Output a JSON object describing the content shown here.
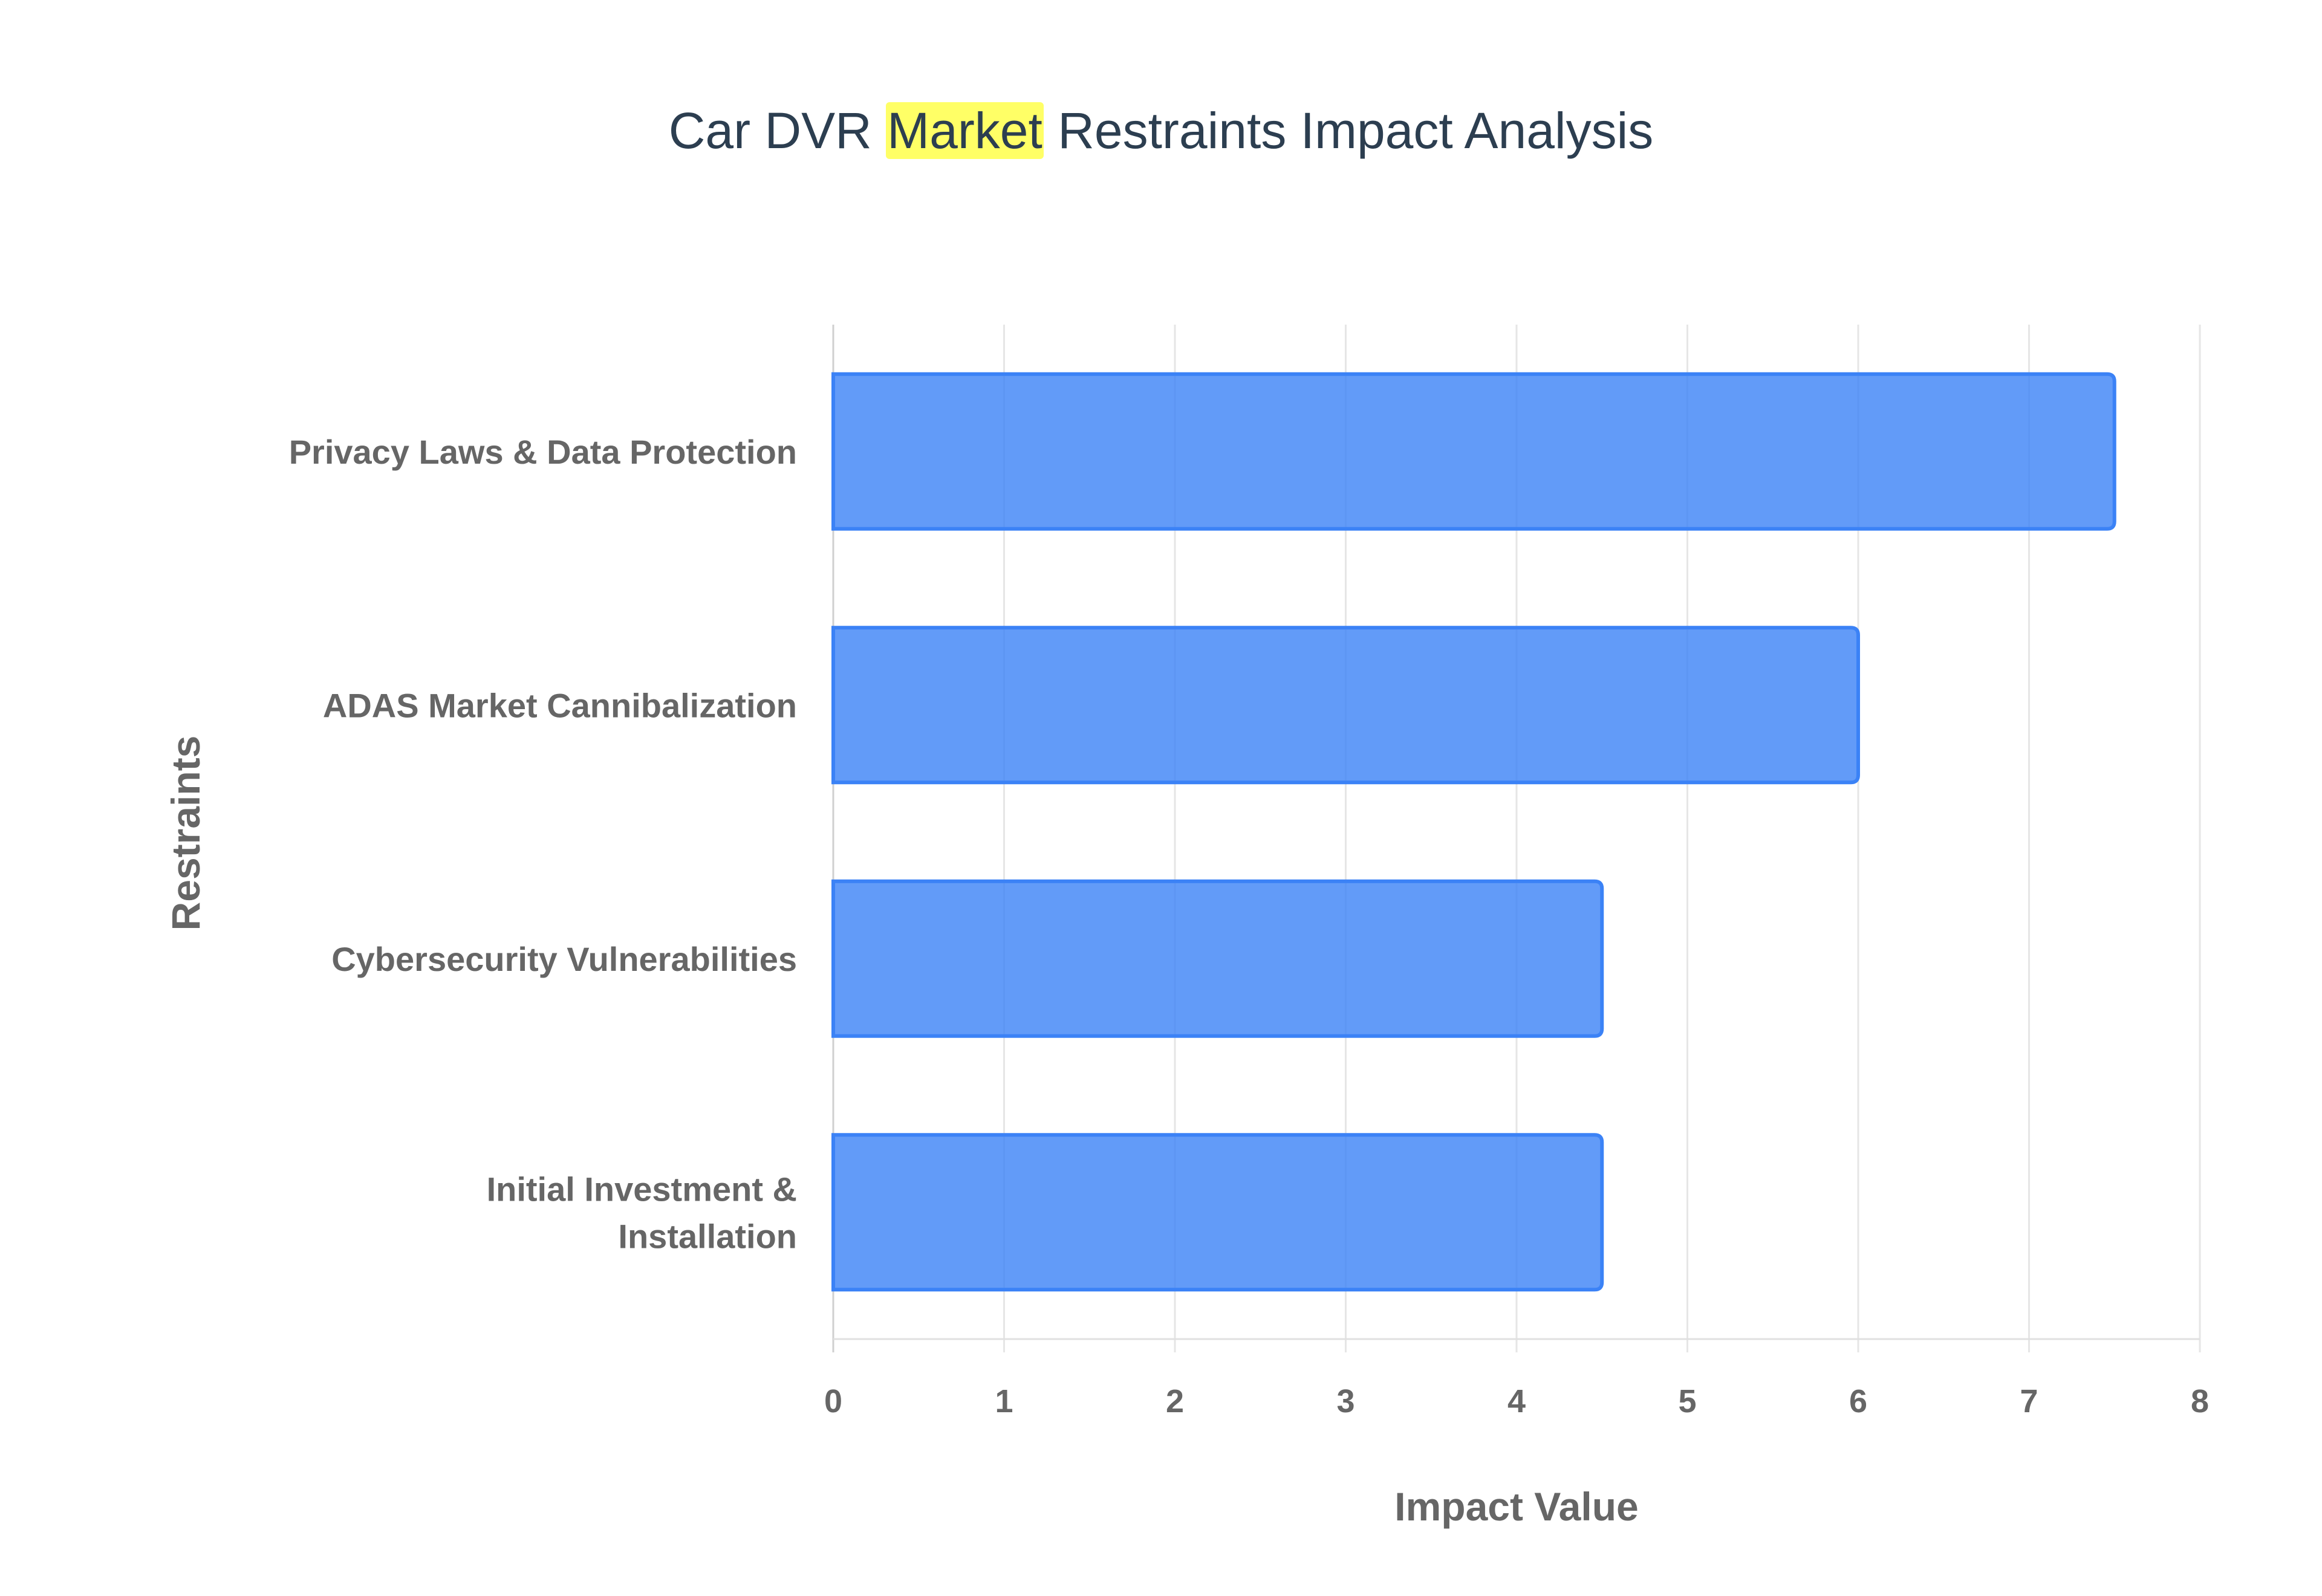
{
  "chart_data": {
    "type": "bar",
    "orientation": "horizontal",
    "title_parts": [
      "Car DVR ",
      "Market",
      " Restraints Impact Analysis"
    ],
    "title_highlight_color": "#ffff66",
    "categories": [
      "Privacy Laws & Data Protection",
      "ADAS Market Cannibalization",
      "Cybersecurity Vulnerabilities",
      "Initial Investment & Installation"
    ],
    "category_lines": [
      [
        "Privacy Laws & Data Protection"
      ],
      [
        "ADAS Market Cannibalization"
      ],
      [
        "Cybersecurity Vulnerabilities"
      ],
      [
        "Initial Investment &",
        "Installation"
      ]
    ],
    "values": [
      7.5,
      6,
      4.5,
      4.5
    ],
    "xlabel": "Impact Value",
    "ylabel": "Restraints",
    "xlim": [
      0,
      8
    ],
    "xticks": [
      "0",
      "1",
      "2",
      "3",
      "4",
      "5",
      "6",
      "7",
      "8"
    ],
    "grid": true,
    "bar_fill": "#3b82f6",
    "bar_fill_opacity": 0.8,
    "bar_stroke": "#3b82f6"
  }
}
